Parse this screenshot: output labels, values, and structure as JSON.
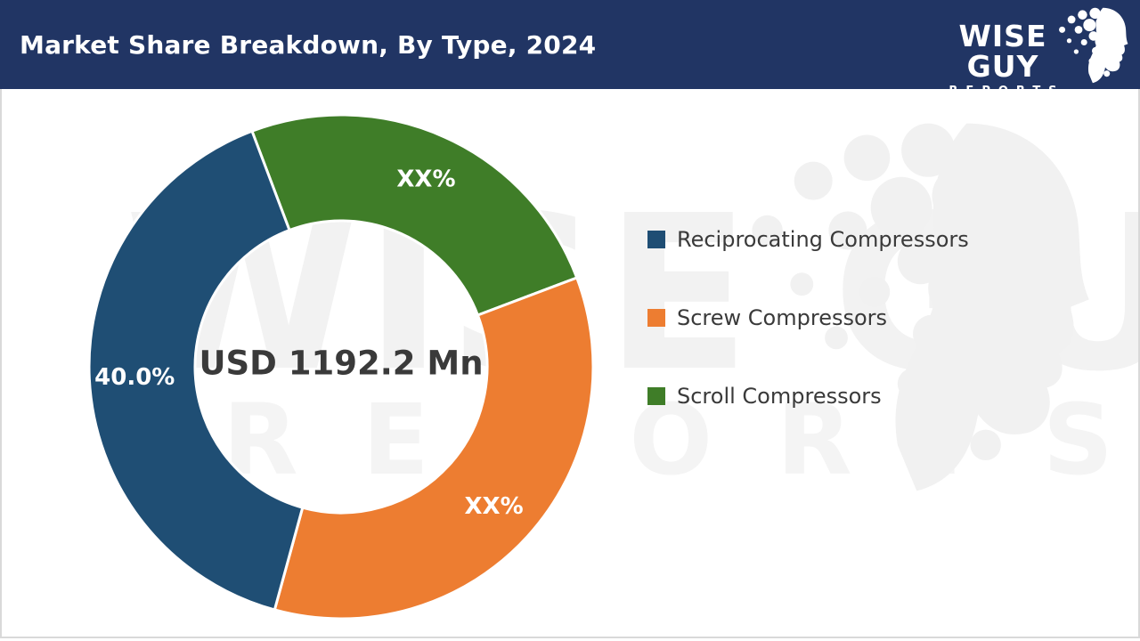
{
  "header": {
    "title": "Market Share Breakdown, By Type, 2024",
    "bg_color": "#213564",
    "logo": {
      "line1": "WISE GUY",
      "line2": "REPORTS"
    }
  },
  "watermark": {
    "line1": "WISE GUY",
    "line2": "REPORTS"
  },
  "chart_data": {
    "type": "pie",
    "subtype": "donut",
    "title": "Market Share Breakdown, By Type, 2024",
    "center_label": "USD 1192.2 Mn",
    "legend_position": "right",
    "start_angle_deg": -20.7,
    "clockwise": true,
    "inner_radius_ratio": 0.58,
    "segments": [
      {
        "label": "Reciprocating Compressors",
        "value": 40.0,
        "display_label": "40.0%",
        "color": "#1f4e74"
      },
      {
        "label": "Screw Compressors",
        "value": 35.0,
        "display_label": "XX%",
        "color": "#ed7d31"
      },
      {
        "label": "Scroll Compressors",
        "value": 25.0,
        "display_label": "XX%",
        "color": "#3f7d28"
      }
    ]
  }
}
